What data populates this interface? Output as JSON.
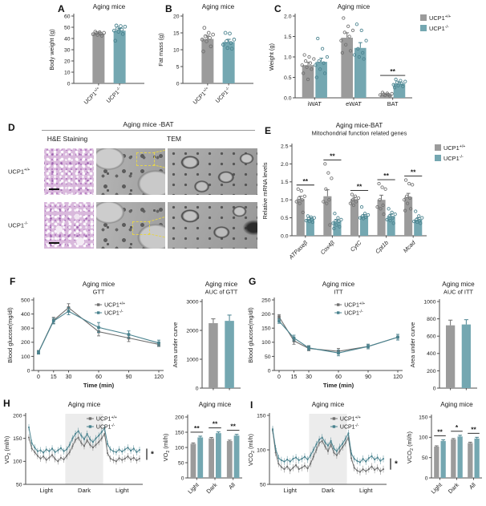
{
  "colors": {
    "wt": "#9B9B9B",
    "ko": "#74A7B1",
    "wt_dark": "#6F6F6F",
    "ko_dark": "#49828E",
    "axis": "#4D4D4D",
    "text": "#1A1A1A",
    "shade": "#ECECEC",
    "roi_yellow": "#E3D34F",
    "hne_base": "#D9B9DC",
    "tem_base": "#ABABAB"
  },
  "legend": {
    "wt": {
      "base": "UCP1",
      "sup": "+/+"
    },
    "ko": {
      "base": "UCP1",
      "sup": "-/-"
    }
  },
  "panels": {
    "A": {
      "label": "A"
    },
    "B": {
      "label": "B"
    },
    "C": {
      "label": "C"
    },
    "D": {
      "label": "D",
      "header": "Aging mice -BAT",
      "col1": "H&E Staining",
      "col2": "TEM"
    },
    "E": {
      "label": "E"
    },
    "F": {
      "label": "F"
    },
    "G": {
      "label": "G"
    },
    "H": {
      "label": "H"
    },
    "I": {
      "label": "I"
    }
  },
  "chart_data": [
    {
      "id": "A",
      "type": "pairbar",
      "title_lines": [
        "Aging mice"
      ],
      "ylabel": "Body weight (g)",
      "ylim": [
        0,
        60
      ],
      "yticks": [
        0,
        10,
        20,
        30,
        40,
        50,
        60
      ],
      "decimals": 0,
      "xlabels": "genotype",
      "bars": [
        {
          "key": "wt",
          "value": 44.5,
          "err": 1.2,
          "points": [
            46,
            45.5,
            45,
            44.8,
            44.2,
            43.8,
            43.2,
            42.5
          ]
        },
        {
          "key": "ko",
          "value": 47,
          "err": 2,
          "points": [
            51.5,
            51,
            50.5,
            49,
            48,
            47,
            46,
            44,
            38
          ]
        }
      ]
    },
    {
      "id": "B",
      "type": "pairbar",
      "title_lines": [
        "Aging mice"
      ],
      "ylabel": "Fat mass (g)",
      "ylim": [
        0,
        20
      ],
      "yticks": [
        0,
        5,
        10,
        15,
        20
      ],
      "decimals": 0,
      "xlabels": "genotype",
      "bars": [
        {
          "key": "wt",
          "value": 13.2,
          "err": 0.9,
          "points": [
            16.5,
            15,
            14.5,
            14,
            13.5,
            13,
            12.5,
            11,
            9.5
          ]
        },
        {
          "key": "ko",
          "value": 12.3,
          "err": 0.8,
          "points": [
            15,
            14.8,
            13,
            12.5,
            12,
            11.5,
            10.5,
            10.3
          ]
        }
      ]
    },
    {
      "id": "C",
      "type": "groupbar",
      "title_lines": [
        "Aging mice"
      ],
      "ylabel": "Weight (g)",
      "ylim": [
        0,
        2
      ],
      "yticks": [
        0,
        0.5,
        1,
        1.5,
        2
      ],
      "decimals": 1,
      "legend": true,
      "rotate_xlabels": false,
      "categories": [
        "iWAT",
        "eWAT",
        "BAT"
      ],
      "series": [
        {
          "key": "wt",
          "values": [
            0.8,
            1.47,
            0.08
          ],
          "errors": [
            0.07,
            0.12,
            0.02
          ],
          "points": [
            [
              1.05,
              1,
              0.95,
              0.9,
              0.85,
              0.8,
              0.75,
              0.7,
              0.6,
              0.45
            ],
            [
              1.95,
              1.75,
              1.65,
              1.6,
              1.5,
              1.4,
              1.3,
              1.15,
              1.1
            ],
            [
              0.13,
              0.11,
              0.1,
              0.09,
              0.08,
              0.07,
              0.06,
              0.05
            ]
          ]
        },
        {
          "key": "ko",
          "values": [
            0.88,
            1.22,
            0.35
          ],
          "errors": [
            0.09,
            0.13,
            0.04
          ],
          "points": [
            [
              1.45,
              1.2,
              1,
              0.9,
              0.85,
              0.8,
              0.7,
              0.6,
              0.5
            ],
            [
              1.8,
              1.65,
              1.4,
              1.2,
              1.1,
              1.05,
              1,
              0.95
            ],
            [
              0.45,
              0.42,
              0.4,
              0.38,
              0.35,
              0.32,
              0.3,
              0.28,
              0.25
            ]
          ]
        }
      ],
      "sig": [
        null,
        null,
        "**"
      ]
    },
    {
      "id": "E",
      "type": "groupbar",
      "title_lines": [
        "Aging mice-BAT",
        "Mitochondrial function related genes"
      ],
      "ylabel": "Relative mRNA levels",
      "ylim": [
        0,
        2.5
      ],
      "yticks": [
        0,
        0.5,
        1,
        1.5,
        2,
        2.5
      ],
      "decimals": 1,
      "legend": true,
      "rotate_xlabels": true,
      "italic_xlabels": true,
      "categories": [
        "ATPaseβ",
        "Cox4β",
        "CytC",
        "Cpt1b",
        "Mcad"
      ],
      "series": [
        {
          "key": "wt",
          "values": [
            1.02,
            1.1,
            1.02,
            1,
            1.08
          ],
          "errors": [
            0.08,
            0.18,
            0.05,
            0.13,
            0.1
          ],
          "points": [
            [
              1.3,
              1.25,
              1.1,
              1.05,
              1,
              0.95,
              0.9,
              0.65
            ],
            [
              2,
              1.75,
              1.6,
              1.3,
              1,
              0.95,
              0.9,
              0.3
            ],
            [
              1.15,
              1.1,
              1.05,
              1,
              0.95,
              0.9,
              0.85
            ],
            [
              1.45,
              1.35,
              1.3,
              1,
              0.85,
              0.8,
              0.75,
              0.6
            ],
            [
              1.55,
              1.45,
              1.42,
              1.1,
              1.05,
              1,
              0.9,
              0.75,
              0.7
            ]
          ]
        },
        {
          "key": "ko",
          "values": [
            0.47,
            0.4,
            0.55,
            0.55,
            0.45
          ],
          "errors": [
            0.04,
            0.04,
            0.04,
            0.05,
            0.05
          ],
          "points": [
            [
              0.55,
              0.52,
              0.5,
              0.48,
              0.45,
              0.42,
              0.4,
              0.38
            ],
            [
              0.62,
              0.5,
              0.45,
              0.42,
              0.4,
              0.35,
              0.3,
              0.25,
              0.2
            ],
            [
              0.8,
              0.62,
              0.58,
              0.55,
              0.52,
              0.5,
              0.48
            ],
            [
              0.75,
              0.65,
              0.6,
              0.55,
              0.5,
              0.45,
              0.42,
              0.35
            ],
            [
              0.68,
              0.55,
              0.5,
              0.45,
              0.42,
              0.4,
              0.38,
              0.35
            ]
          ]
        }
      ],
      "sig": [
        "**",
        "**",
        "**",
        "**",
        "**"
      ]
    },
    {
      "id": "F_GTT",
      "type": "line",
      "title_lines": [
        "Aging mice",
        "GTT"
      ],
      "ylabel": "Blood glucose(mg/dl)",
      "xlabel": "Time (min)",
      "ylim": [
        0,
        500
      ],
      "yticks": [
        0,
        100,
        200,
        300,
        400,
        500
      ],
      "decimals": 0,
      "legend": true,
      "x": [
        0,
        15,
        30,
        60,
        90,
        120
      ],
      "series": [
        {
          "key": "wt",
          "values": [
            130,
            355,
            445,
            275,
            230,
            185
          ],
          "errors": [
            12,
            22,
            28,
            30,
            25,
            15
          ]
        },
        {
          "key": "ko",
          "values": [
            128,
            350,
            420,
            305,
            255,
            195
          ],
          "errors": [
            12,
            20,
            25,
            35,
            25,
            20
          ]
        }
      ]
    },
    {
      "id": "F_AUC",
      "type": "pairbar",
      "title_lines": [
        "Aging mice",
        "AUC of GTT"
      ],
      "ylabel": "Area under curve",
      "ylim": [
        0,
        3000
      ],
      "yticks": [
        0,
        1000,
        2000,
        3000
      ],
      "decimals": 0,
      "xlabels": "none",
      "bars": [
        {
          "key": "wt",
          "value": 2250,
          "err": 150
        },
        {
          "key": "ko",
          "value": 2330,
          "err": 200
        }
      ]
    },
    {
      "id": "G_ITT",
      "type": "line",
      "title_lines": [
        "Aging mice",
        "ITT"
      ],
      "ylabel": "Blood glucose(mg/dl)",
      "xlabel": "Time (min)",
      "ylim": [
        0,
        250
      ],
      "yticks": [
        0,
        50,
        100,
        150,
        200,
        250
      ],
      "decimals": 0,
      "legend": true,
      "x": [
        0,
        15,
        30,
        60,
        90,
        120
      ],
      "series": [
        {
          "key": "wt",
          "values": [
            190,
            105,
            78,
            68,
            85,
            118
          ],
          "errors": [
            8,
            12,
            8,
            10,
            8,
            10
          ]
        },
        {
          "key": "ko",
          "values": [
            175,
            115,
            80,
            62,
            85,
            118
          ],
          "errors": [
            8,
            10,
            8,
            10,
            8,
            10
          ]
        }
      ]
    },
    {
      "id": "G_AUC",
      "type": "pairbar",
      "title_lines": [
        "Aging mice",
        "AUC of ITT"
      ],
      "ylabel": "Area under curve",
      "ylim": [
        0,
        1000
      ],
      "yticks": [
        0,
        200,
        400,
        600,
        800,
        1000
      ],
      "decimals": 0,
      "xlabels": "none",
      "bars": [
        {
          "key": "wt",
          "value": 725,
          "err": 60
        },
        {
          "key": "ko",
          "value": 735,
          "err": 55
        }
      ]
    },
    {
      "id": "H_VO2",
      "type": "timeseries",
      "title_lines": [
        "Aging mice"
      ],
      "ylabel": {
        "base": "VO",
        "sub": "2",
        "rest": " (ml/h)"
      },
      "ylim": [
        50,
        200
      ],
      "yticks": [
        50,
        100,
        150,
        200
      ],
      "decimals": 0,
      "legend": true,
      "sections": [
        "Light",
        "Dark",
        "Light"
      ],
      "shade": [
        12.5,
        25.5
      ],
      "err": 7,
      "sig_right": "*",
      "series": [
        {
          "key": "wt",
          "values": [
            152,
            128,
            120,
            112,
            106,
            111,
            103,
            108,
            114,
            105,
            100,
            108,
            104,
            112,
            120,
            133,
            147,
            152,
            140,
            133,
            146,
            136,
            130,
            136,
            142,
            150,
            160,
            118,
            106,
            103,
            100,
            107,
            103,
            106,
            111,
            104,
            108,
            102,
            106
          ]
        },
        {
          "key": "ko",
          "values": [
            174,
            140,
            130,
            122,
            124,
            119,
            126,
            122,
            128,
            120,
            124,
            129,
            122,
            126,
            136,
            150,
            160,
            166,
            156,
            148,
            160,
            148,
            142,
            150,
            156,
            164,
            172,
            138,
            126,
            122,
            120,
            126,
            121,
            126,
            130,
            123,
            128,
            120,
            125
          ]
        }
      ]
    },
    {
      "id": "H_BAR",
      "type": "groupbar",
      "title_lines": [
        "Aging mice"
      ],
      "ylabel": {
        "base": "VO",
        "sub": "2",
        "rest": " (ml/h)"
      },
      "ylim": [
        0,
        200
      ],
      "yticks": [
        0,
        50,
        100,
        150,
        200
      ],
      "decimals": 0,
      "rotate_xlabels": true,
      "categories": [
        "Light",
        "Dark",
        "All"
      ],
      "series": [
        {
          "key": "wt",
          "values": [
            112,
            130,
            121
          ],
          "errors": [
            3,
            3,
            3
          ]
        },
        {
          "key": "ko",
          "values": [
            133,
            147,
            139
          ],
          "errors": [
            4,
            4,
            4
          ]
        }
      ],
      "sig": [
        "**",
        "**",
        "**"
      ]
    },
    {
      "id": "I_VCO2",
      "type": "timeseries",
      "title_lines": [
        "Aging mice"
      ],
      "ylabel": {
        "base": "VCO",
        "sub": "2",
        "rest": " (ml/h)"
      },
      "ylim": [
        50,
        150
      ],
      "yticks": [
        50,
        100,
        150
      ],
      "decimals": 0,
      "legend": true,
      "sections": [
        "Light",
        "Dark",
        "Light"
      ],
      "shade": [
        12.5,
        25.5
      ],
      "err": 5,
      "sig_right": "*",
      "series": [
        {
          "key": "wt",
          "values": [
            128,
            96,
            80,
            75,
            72,
            76,
            70,
            74,
            78,
            72,
            74,
            77,
            73,
            80,
            90,
            100,
            110,
            113,
            105,
            98,
            108,
            96,
            92,
            98,
            104,
            110,
            118,
            88,
            74,
            70,
            68,
            72,
            69,
            72,
            76,
            71,
            74,
            69,
            72
          ]
        },
        {
          "key": "ko",
          "values": [
            130,
            102,
            88,
            85,
            83,
            86,
            83,
            87,
            89,
            85,
            87,
            90,
            86,
            92,
            100,
            108,
            115,
            118,
            111,
            106,
            113,
            102,
            98,
            104,
            109,
            116,
            124,
            95,
            87,
            84,
            82,
            87,
            83,
            88,
            91,
            86,
            89,
            84,
            87
          ]
        }
      ]
    },
    {
      "id": "I_BAR",
      "type": "groupbar",
      "title_lines": [
        "Aging mice"
      ],
      "ylabel": {
        "base": "VCO",
        "sub": "2",
        "rest": " (ml/h)"
      },
      "ylim": [
        0,
        150
      ],
      "yticks": [
        0,
        50,
        100,
        150
      ],
      "decimals": 0,
      "rotate_xlabels": true,
      "categories": [
        "Light",
        "Dark",
        "All"
      ],
      "series": [
        {
          "key": "wt",
          "values": [
            77,
            95,
            86
          ],
          "errors": [
            2,
            2,
            2
          ]
        },
        {
          "key": "ko",
          "values": [
            91,
            102,
            97
          ],
          "errors": [
            3,
            3,
            3
          ]
        }
      ],
      "sig": [
        "**",
        "*",
        "**"
      ]
    }
  ]
}
